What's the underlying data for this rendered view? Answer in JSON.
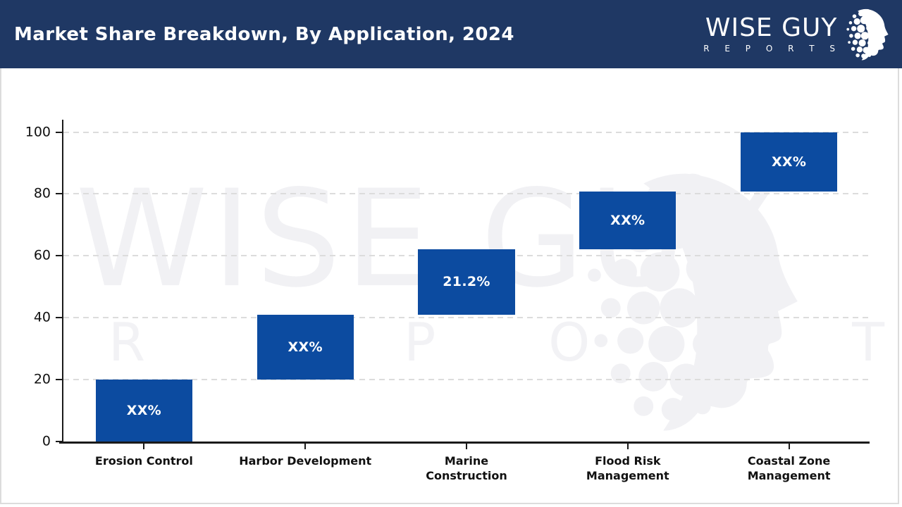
{
  "header": {
    "title": "Market Share Breakdown, By Application, 2024",
    "brand_line1": "WISE GUY",
    "brand_line2": "R E P O R T S"
  },
  "watermark": {
    "line1": "WISE GUY",
    "line2": "R E P O R T S"
  },
  "chart_data": {
    "type": "bar",
    "subtype": "floating-waterfall-segments",
    "title": "Market Share Breakdown, By Application, 2024",
    "categories": [
      "Erosion Control",
      "Harbor Development",
      "Marine Construction",
      "Flood Risk Management",
      "Coastal Zone Management"
    ],
    "category_label_lines": [
      [
        "Erosion Control"
      ],
      [
        "Harbor Development"
      ],
      [
        "Marine",
        "Construction"
      ],
      [
        "Flood Risk",
        "Management"
      ],
      [
        "Coastal Zone",
        "Management"
      ]
    ],
    "bars": [
      {
        "category": "Erosion Control",
        "start": 0,
        "end": 20,
        "label": "XX%"
      },
      {
        "category": "Harbor Development",
        "start": 20,
        "end": 41,
        "label": "XX%"
      },
      {
        "category": "Marine Construction",
        "start": 41,
        "end": 62.2,
        "label": "21.2%"
      },
      {
        "category": "Flood Risk Management",
        "start": 62.2,
        "end": 80.8,
        "label": "XX%"
      },
      {
        "category": "Coastal Zone Management",
        "start": 80.8,
        "end": 100,
        "label": "XX%"
      }
    ],
    "yticks": [
      0,
      20,
      40,
      60,
      80,
      100
    ],
    "ylim": [
      0,
      104
    ],
    "xlabel": "",
    "ylabel": "",
    "legend": "none",
    "grid": "horizontal-dashed",
    "bar_width_fraction": 0.6,
    "colors": {
      "bar": "#0c4ba0",
      "header_bg": "#1f3864",
      "grid": "#dcdcdc",
      "axis": "#1a1a1a",
      "bar_label_text": "#ffffff",
      "watermark": "#f1f1f4"
    }
  }
}
